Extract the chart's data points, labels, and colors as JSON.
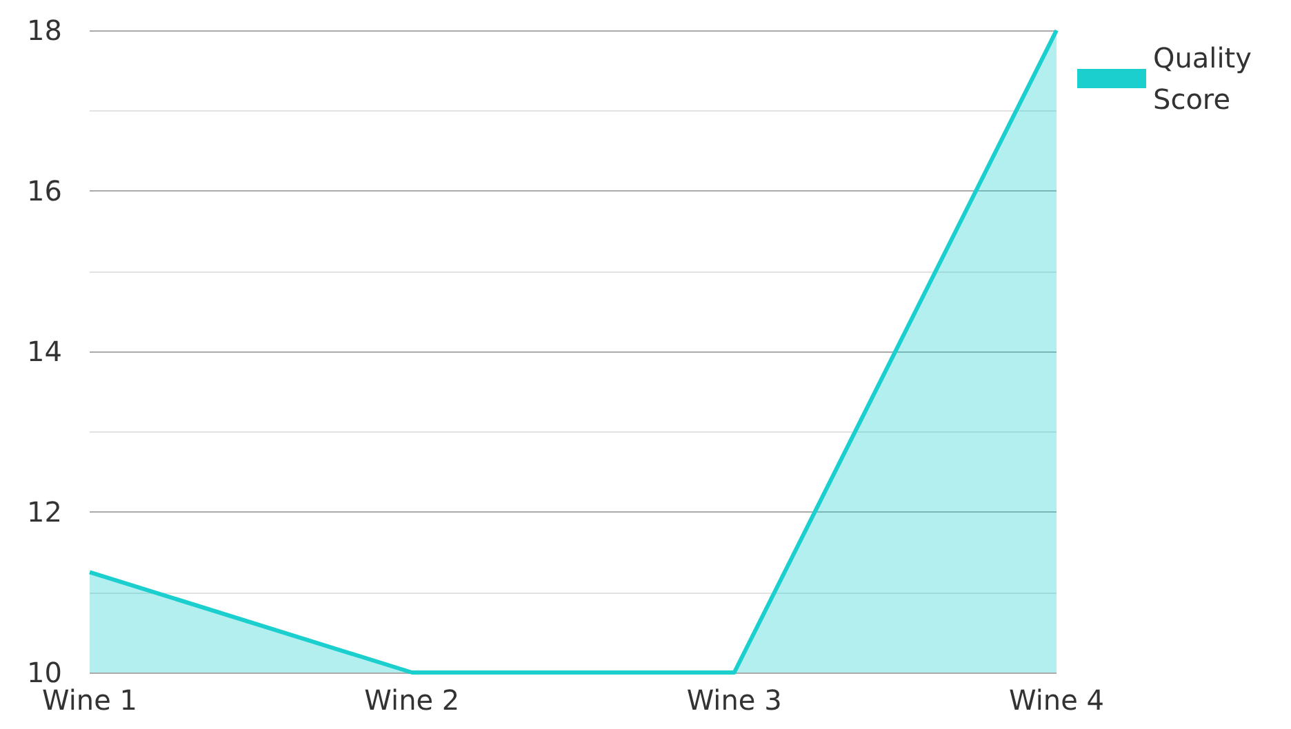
{
  "chart_data": {
    "type": "area",
    "categories": [
      "Wine 1",
      "Wine 2",
      "Wine 3",
      "Wine 4"
    ],
    "series": [
      {
        "name": "Quality Score",
        "color": "#1ccfcf",
        "values": [
          11.25,
          10,
          10,
          18
        ]
      }
    ],
    "ylim": [
      10,
      18
    ],
    "yticks": [
      10,
      12,
      14,
      16,
      18
    ],
    "grid": "y",
    "legend": "top right",
    "marker": "none"
  }
}
